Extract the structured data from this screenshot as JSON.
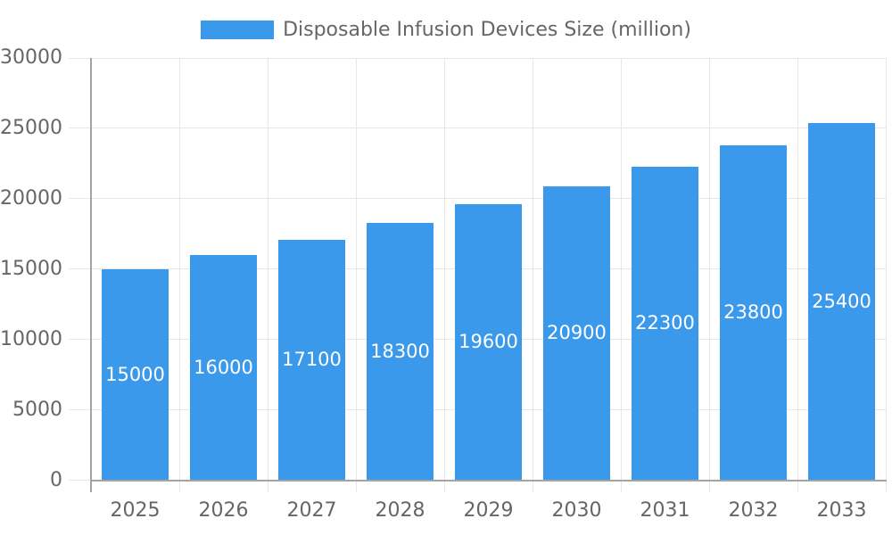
{
  "colors": {
    "bar": "#3b99ec",
    "grid": "#e6e6e6",
    "axis": "#a3a3a3",
    "text": "#666666",
    "bar_label": "#ffffff",
    "background": "#ffffff"
  },
  "legend": {
    "label": "Disposable Infusion Devices Size (million)"
  },
  "chart_data": {
    "type": "bar",
    "title": "Disposable Infusion Devices Size (million)",
    "categories": [
      "2025",
      "2026",
      "2027",
      "2028",
      "2029",
      "2030",
      "2031",
      "2032",
      "2033"
    ],
    "values": [
      15000,
      16000,
      17100,
      18300,
      19600,
      20900,
      22300,
      23800,
      25400
    ],
    "xlabel": "",
    "ylabel": "",
    "ylim": [
      0,
      30000
    ],
    "yticks": [
      0,
      5000,
      10000,
      15000,
      20000,
      25000,
      30000
    ],
    "grid": true,
    "legend_position": "top",
    "bar_labels": "inside-center-white"
  }
}
